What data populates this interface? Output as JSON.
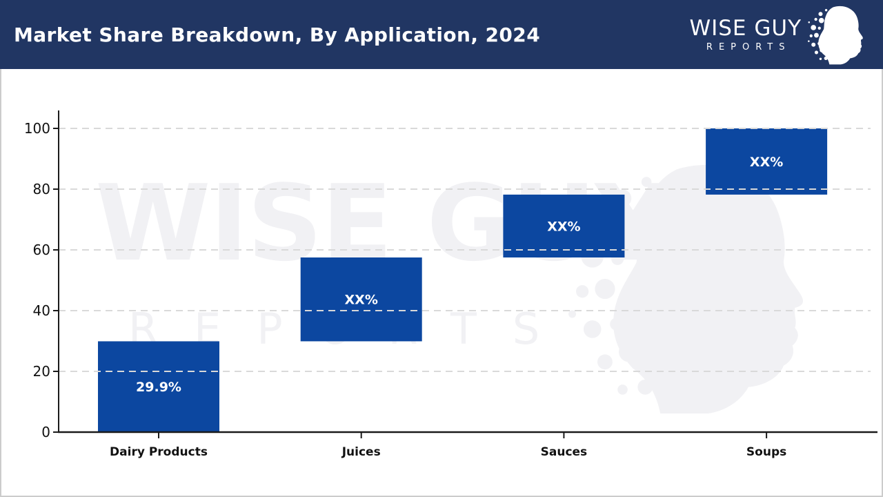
{
  "header": {
    "title": "Market Share Breakdown, By Application, 2024",
    "logo": {
      "name": "WISE GUY",
      "sub": "REPORTS"
    }
  },
  "watermark": {
    "line1": "WISE GUY",
    "line2": "REPORTS"
  },
  "colors": {
    "header_bg": "#213663",
    "bar_fill": "#0c47a0",
    "gridline": "#d9d9d9",
    "axis": "#1a1a1a",
    "tick_label": "#111111",
    "category_label": "#111111",
    "bar_label": "#ffffff",
    "watermark": "#f1f1f4",
    "page_border": "#cccccc"
  },
  "chart_data": {
    "type": "bar",
    "subtype": "waterfall",
    "title": "Market Share Breakdown, By Application, 2024",
    "xlabel": "",
    "ylabel": "",
    "ylim": [
      0,
      100
    ],
    "y_ticks": [
      0,
      20,
      40,
      60,
      80,
      100
    ],
    "grid": true,
    "grid_style": "dashed",
    "legend": "none",
    "categories": [
      "Dairy Products",
      "Juices",
      "Sauces",
      "Soups"
    ],
    "bars": [
      {
        "category": "Dairy Products",
        "start": 0,
        "end": 29.9,
        "label": "29.9%"
      },
      {
        "category": "Juices",
        "start": 29.9,
        "end": 57.5,
        "label": "XX%"
      },
      {
        "category": "Sauces",
        "start": 57.5,
        "end": 78.2,
        "label": "XX%"
      },
      {
        "category": "Soups",
        "start": 78.2,
        "end": 100,
        "label": "XX%"
      }
    ]
  }
}
